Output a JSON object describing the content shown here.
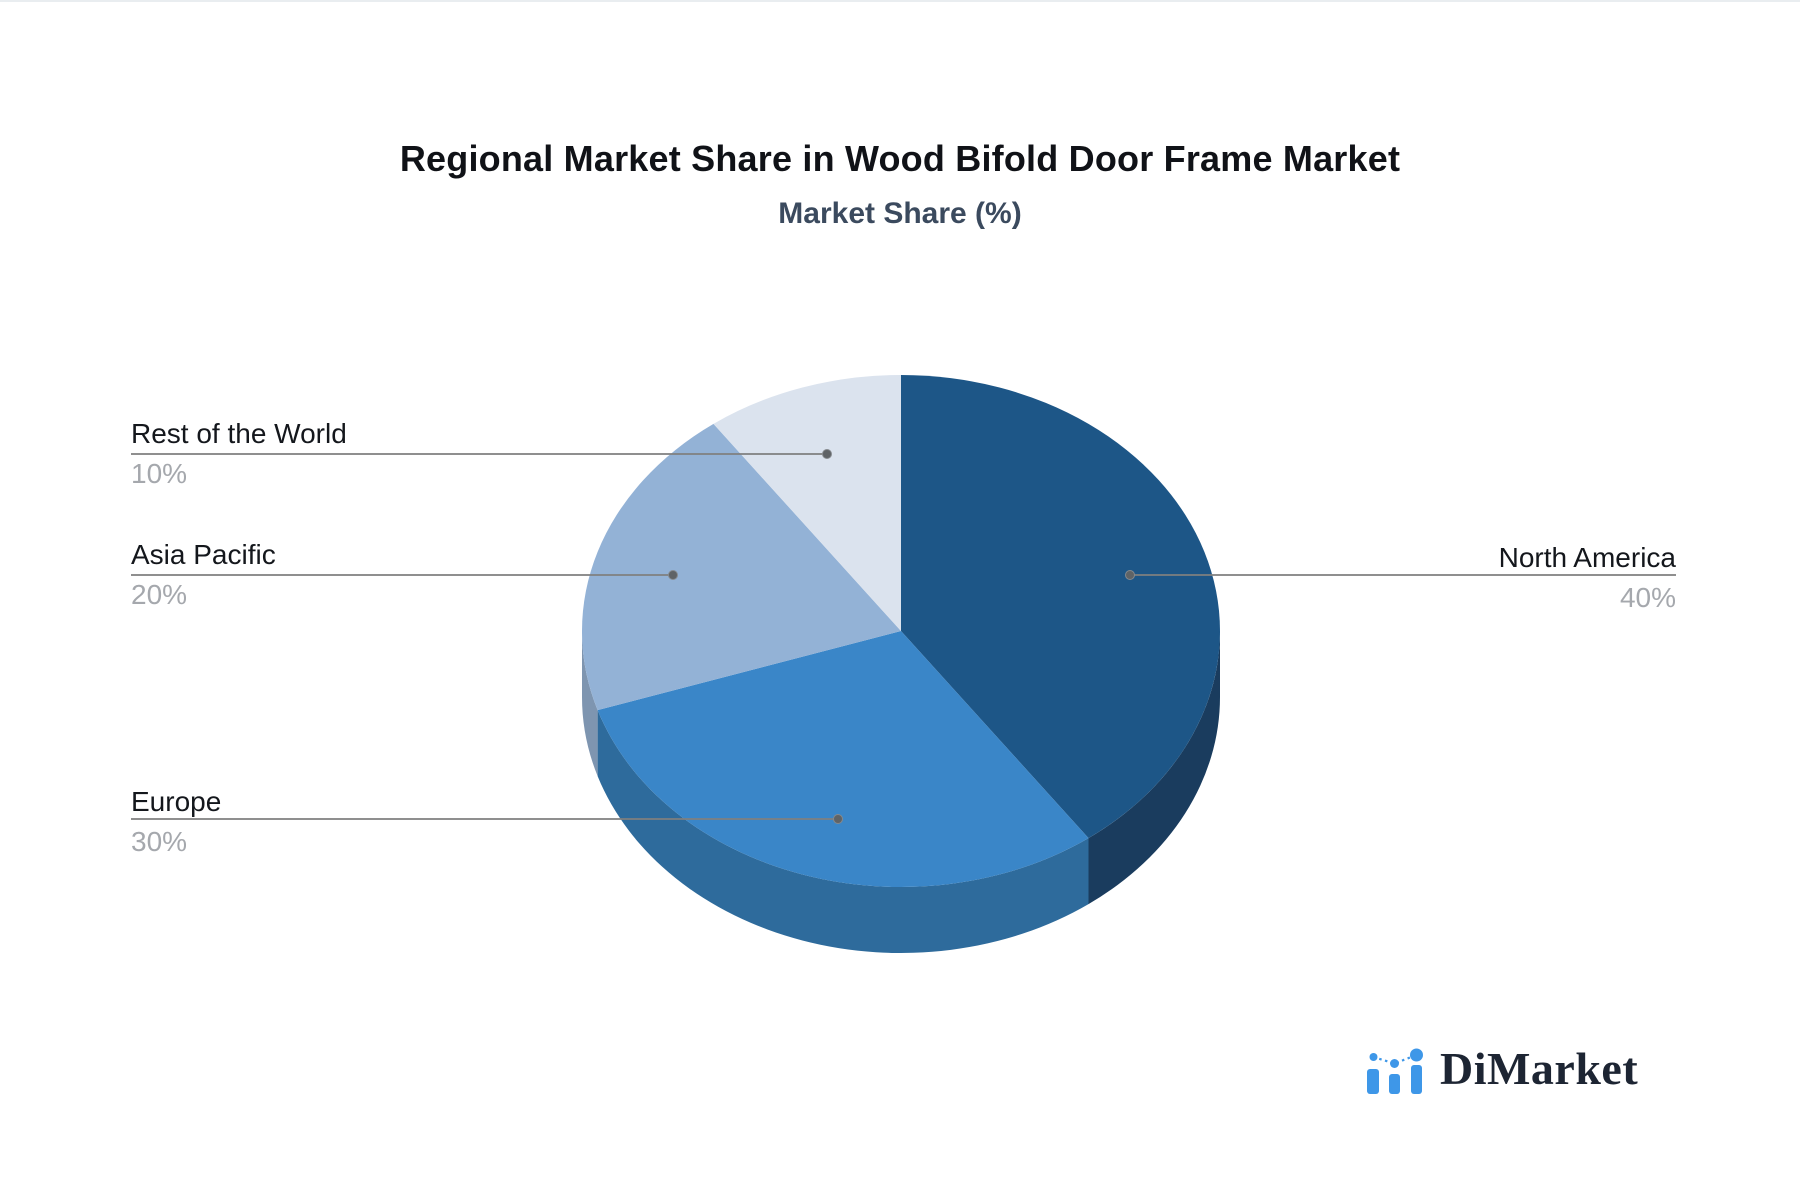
{
  "chart_data": {
    "type": "pie",
    "style": "3d",
    "title": "Regional Market Share in Wood Bifold Door Frame Market",
    "subtitle": "Market Share (%)",
    "unit": "%",
    "start_angle": "12-oclock",
    "direction": "clockwise",
    "legend_position": "none",
    "slices": [
      {
        "label": "North America",
        "value": 40,
        "display": "40%",
        "color": "#1D5687"
      },
      {
        "label": "Europe",
        "value": 30,
        "display": "30%",
        "color": "#3A86C8"
      },
      {
        "label": "Asia Pacific",
        "value": 20,
        "display": "20%",
        "color": "#93B2D6"
      },
      {
        "label": "Rest of the World",
        "value": 10,
        "display": "10%",
        "color": "#DBE3EE"
      }
    ],
    "label_color": "#14171C",
    "value_color": "#A5A8AD",
    "leader_line_color": "#7F7F7F"
  },
  "logo": {
    "text": "DiMarket",
    "icon": "bar-chart-trend-icon",
    "accent": "#3E97E8",
    "text_color": "#1D2533"
  }
}
